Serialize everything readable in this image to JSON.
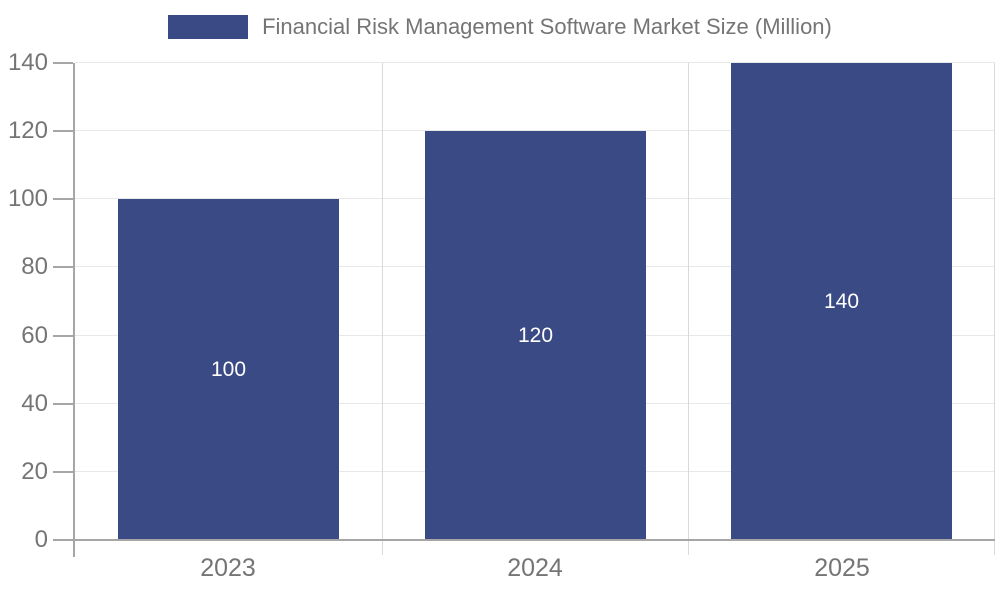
{
  "legend": {
    "swatch_color": "#3A4A85"
  },
  "colors": {
    "bar": "#3A4A85",
    "bar_label": "#ffffff",
    "legend_text": "#757575",
    "axis_label": "#757575",
    "axis_line": "#a6a6a6",
    "grid_horizontal": "#e8e8e8",
    "grid_vertical": "#d9d9d9",
    "background": "#ffffff"
  },
  "chart_data": {
    "type": "bar",
    "title": "Financial Risk Management Software Market Size (Million)",
    "categories": [
      "2023",
      "2024",
      "2025"
    ],
    "values": [
      100,
      120,
      140
    ],
    "xlabel": "",
    "ylabel": "",
    "ylim": [
      0,
      140
    ],
    "ytick_interval": 20,
    "yticks": [
      0,
      20,
      40,
      60,
      80,
      100,
      120,
      140
    ],
    "grid": true,
    "legend_position": "top",
    "bar_color": "#3A4A85",
    "bar_width_fraction": 0.72,
    "value_labels_inside_bars": true
  }
}
